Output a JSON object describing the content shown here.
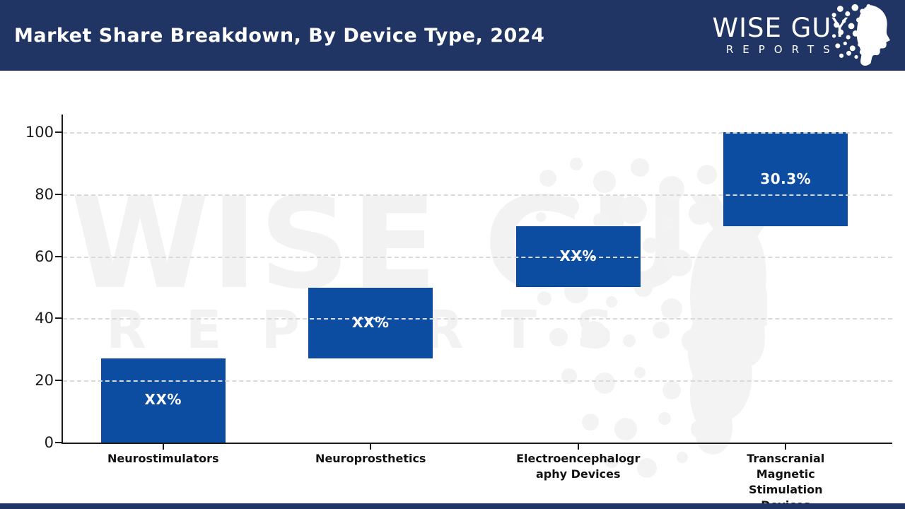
{
  "header": {
    "title": "Market Share Breakdown, By Device Type, 2024",
    "logo": {
      "wordmark": "WISE GUY",
      "subtext": "REPORTS"
    }
  },
  "watermark": {
    "wordmark": "WISE GUY",
    "subtext": "REPORTS"
  },
  "chart_data": {
    "type": "bar",
    "variant": "floating-segment-steps",
    "title": "Market Share Breakdown, By Device Type, 2024",
    "categories": [
      "Neurostimulators",
      "Neuroprosthetics",
      "Electroencephalography Devices",
      "Transcranial Magnetic Stimulation Devices"
    ],
    "category_label_lines": [
      [
        "Neurostimulators"
      ],
      [
        "Neuroprosthetics"
      ],
      [
        "Electroencephalogr",
        "aphy Devices"
      ],
      [
        "Transcranial",
        "Magnetic",
        "Stimulation",
        "Devices"
      ]
    ],
    "segments": [
      {
        "category": "Neurostimulators",
        "start": 0,
        "end": 27.2,
        "label": "XX%"
      },
      {
        "category": "Neuroprosthetics",
        "start": 27.2,
        "end": 50,
        "label": "XX%"
      },
      {
        "category": "Electroencephalography Devices",
        "start": 50,
        "end": 69.7,
        "label": "XX%"
      },
      {
        "category": "Transcranial Magnetic Stimulation Devices",
        "start": 69.7,
        "end": 100,
        "label": "30.3%"
      }
    ],
    "y_ticks": [
      0,
      20,
      40,
      60,
      80,
      100
    ],
    "ylim": [
      0,
      107
    ],
    "xlabel": "",
    "ylabel": "",
    "legend": "none",
    "grid": "horizontal-dashed",
    "bar_color": "#0c4da2",
    "bar_label_color": "#ffffff"
  },
  "colors": {
    "header_bg": "#203564",
    "footer_bg": "#203564",
    "bar": "#0c4da2",
    "grid": "#d9d9d9",
    "axis": "#1a1a1a",
    "watermark": "#f2f2f2"
  }
}
